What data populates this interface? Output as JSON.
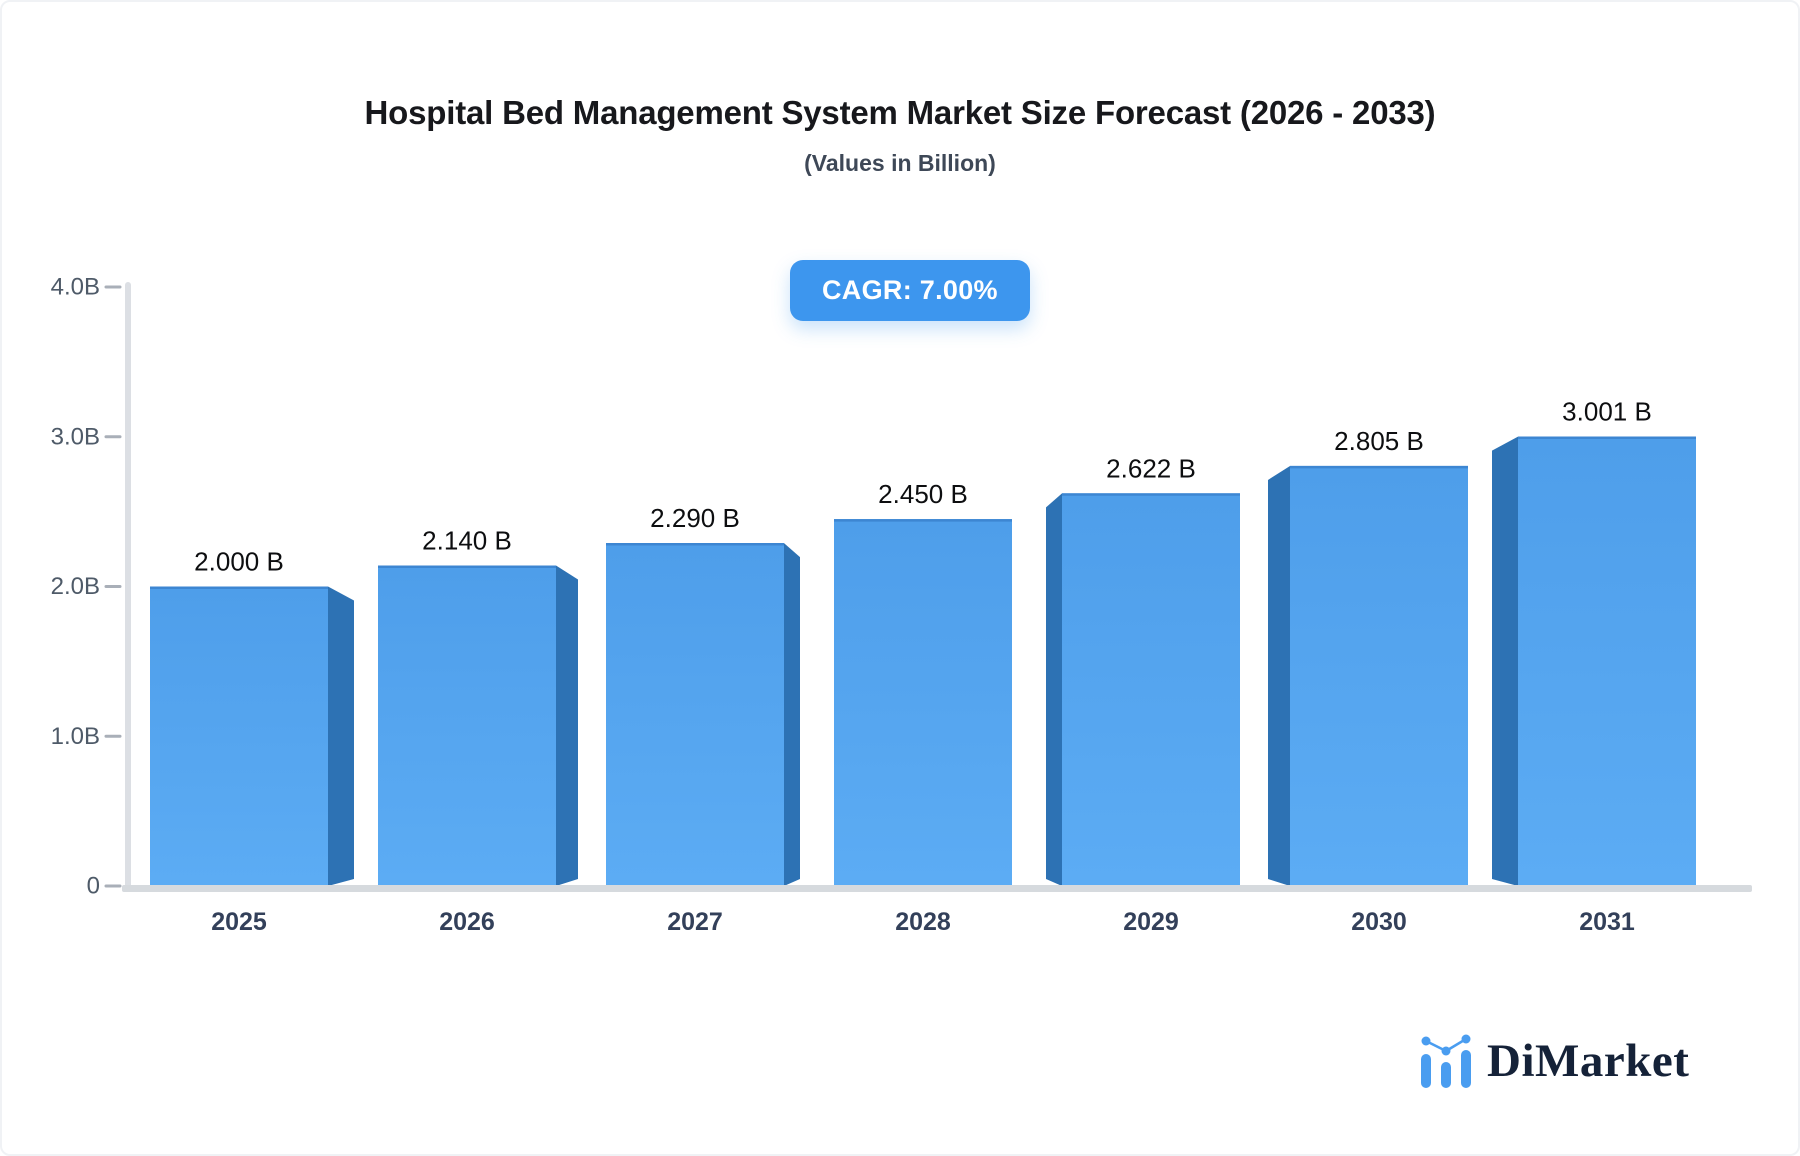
{
  "header": {
    "title": "Hospital Bed Management System Market Size Forecast (2026 - 2033)",
    "subtitle": "(Values in Billion)"
  },
  "badge": {
    "label": "CAGR: 7.00%",
    "bg": "#3d96ee",
    "text_color": "#ffffff"
  },
  "chart_data": {
    "type": "bar",
    "categories": [
      "2025",
      "2026",
      "2027",
      "2028",
      "2029",
      "2030",
      "2031"
    ],
    "values": [
      2.0,
      2.14,
      2.29,
      2.45,
      2.622,
      2.805,
      3.001
    ],
    "value_labels": [
      "2.000 B",
      "2.140 B",
      "2.290 B",
      "2.450 B",
      "2.622 B",
      "2.805 B",
      "3.001 B"
    ],
    "title": "Hospital Bed Management System Market Size Forecast (2026 - 2033)",
    "xlabel": "",
    "ylabel": "",
    "ylim": [
      0,
      4
    ],
    "ytick_values": [
      4,
      3,
      2,
      1,
      0
    ],
    "ytick_labels": [
      "4.0B",
      "3.0B",
      "2.0B",
      "1.0B",
      "0"
    ],
    "grid": false,
    "legend": "none",
    "style": {
      "bar_face_top": "#4e9eea",
      "bar_face_bottom": "#5cacf4",
      "bar_top_edge": "#3d86d2",
      "bar_side": "#2d72b4",
      "axis_line": "#dcdfe4",
      "baseline": "#d6dade",
      "tick_dash": "#a9afb8",
      "tick_label": "#4e5a68",
      "value_label": "#0d0e10",
      "year_label": "#33405a"
    }
  },
  "logo": {
    "brand": "DiMarket",
    "icon": "bar-line-chart-icon",
    "icon_color": "#4a9df0",
    "text_color": "#152238"
  }
}
